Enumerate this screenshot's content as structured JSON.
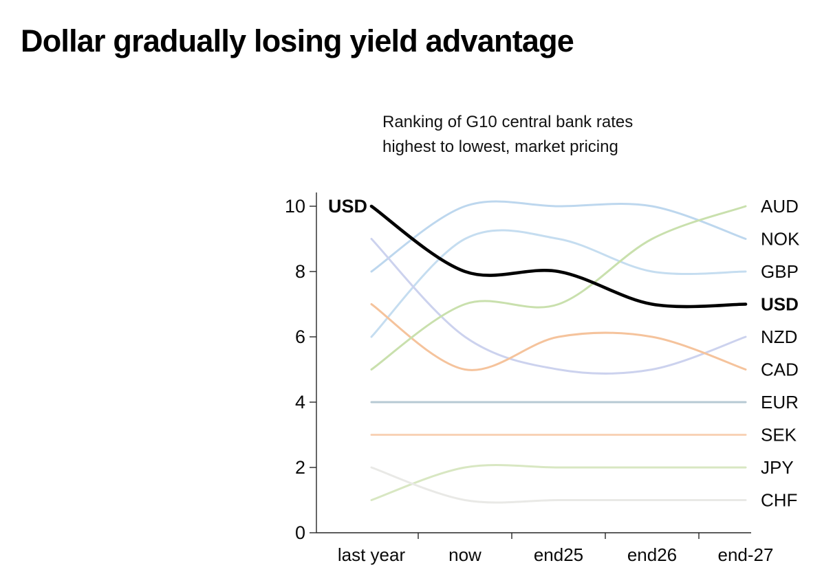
{
  "page": {
    "title": "Dollar gradually losing yield advantage"
  },
  "chart_data": {
    "type": "line",
    "variant": "bump-ranking",
    "title": "Dollar gradually losing yield advantage",
    "subtitle_line1": "Ranking of G10 central bank rates",
    "subtitle_line2": "highest to lowest, market pricing",
    "categories": [
      "last year",
      "now",
      "end25",
      "end26",
      "end-27"
    ],
    "y_ticks": [
      0,
      2,
      4,
      6,
      8,
      10
    ],
    "ylim": [
      0,
      10
    ],
    "xlabel": "",
    "ylabel": "",
    "grid": false,
    "legend_position": "right-edge-labels",
    "axis_color": "#262626",
    "series": [
      {
        "name": "NOK",
        "values": [
          8,
          10,
          10,
          10,
          9
        ],
        "color": "#bdd7ee",
        "width": 3,
        "end_label": "NOK"
      },
      {
        "name": "GBP",
        "values": [
          6,
          9,
          9,
          8,
          8
        ],
        "color": "#c5ddf0",
        "width": 3,
        "end_label": "GBP"
      },
      {
        "name": "NZD",
        "values": [
          9,
          6,
          5,
          5,
          6
        ],
        "color": "#ccd2ee",
        "width": 3,
        "end_label": "NZD"
      },
      {
        "name": "CAD",
        "values": [
          7,
          5,
          6,
          6,
          5
        ],
        "color": "#f5c39c",
        "width": 3,
        "end_label": "CAD"
      },
      {
        "name": "AUD",
        "values": [
          5,
          7,
          7,
          9,
          10
        ],
        "color": "#c9e0ad",
        "width": 3,
        "end_label": "AUD"
      },
      {
        "name": "EUR",
        "values": [
          4,
          4,
          4,
          4,
          4
        ],
        "color": "#b7c9d3",
        "width": 3,
        "end_label": "EUR"
      },
      {
        "name": "SEK",
        "values": [
          3,
          3,
          3,
          3,
          3
        ],
        "color": "#f8d2b6",
        "width": 3,
        "end_label": "SEK"
      },
      {
        "name": "JPY",
        "values": [
          1,
          2,
          2,
          2,
          2
        ],
        "color": "#d8e7c2",
        "width": 3,
        "end_label": "JPY"
      },
      {
        "name": "CHF",
        "values": [
          2,
          1,
          1,
          1,
          1
        ],
        "color": "#e9e9e6",
        "width": 3,
        "end_label": "CHF"
      },
      {
        "name": "USD",
        "values": [
          10,
          8,
          8,
          7,
          7
        ],
        "color": "#000000",
        "width": 4.6,
        "bold": true,
        "start_label": "USD",
        "end_label": "USD"
      }
    ]
  }
}
